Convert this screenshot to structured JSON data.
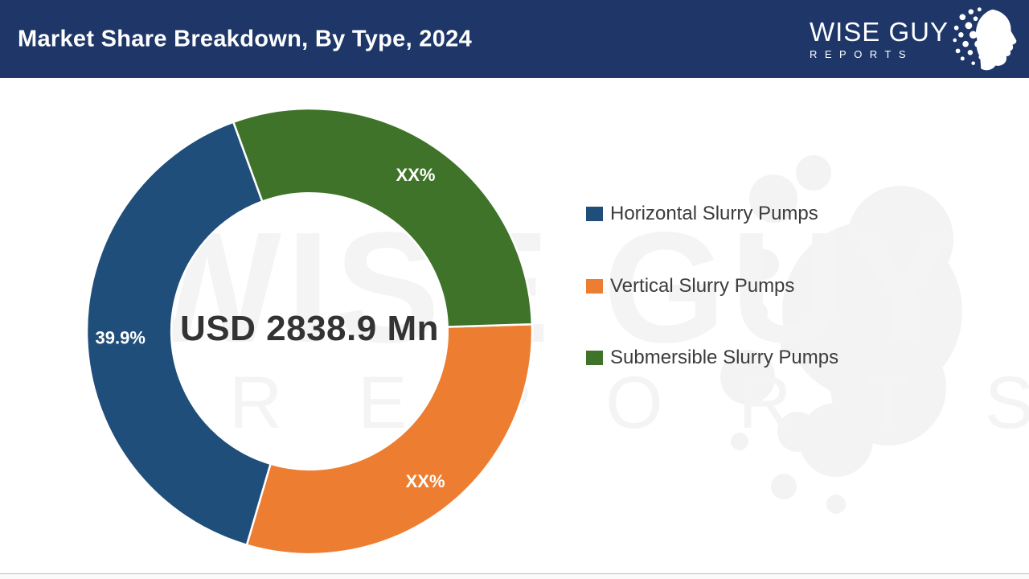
{
  "header": {
    "title": "Market Share Breakdown, By Type, 2024",
    "bg_color": "#1F3768",
    "logo": {
      "line1": "WISE GUY",
      "line2": "REPORTS"
    }
  },
  "chart_data": {
    "type": "pie",
    "subtype": "donut",
    "title": "Market Share Breakdown, By Type, 2024",
    "center_label": "USD 2838.9 Mn",
    "categories": [
      "Horizontal Slurry Pumps",
      "Vertical Slurry Pumps",
      "Submersible Slurry Pumps"
    ],
    "values": [
      39.9,
      30.05,
      30.05
    ],
    "slice_labels": [
      "39.9%",
      "XX%",
      "XX%"
    ],
    "colors": [
      "#204E7A",
      "#ED7D31",
      "#3F7329"
    ],
    "start_angle": 110,
    "counterclockwise": true,
    "donut_hole_ratio": 0.62,
    "label_radius_ratio": 0.85,
    "legend_position": "right"
  },
  "watermark": {
    "line1": "WISE GUY",
    "line2": "R E P O R T S"
  }
}
